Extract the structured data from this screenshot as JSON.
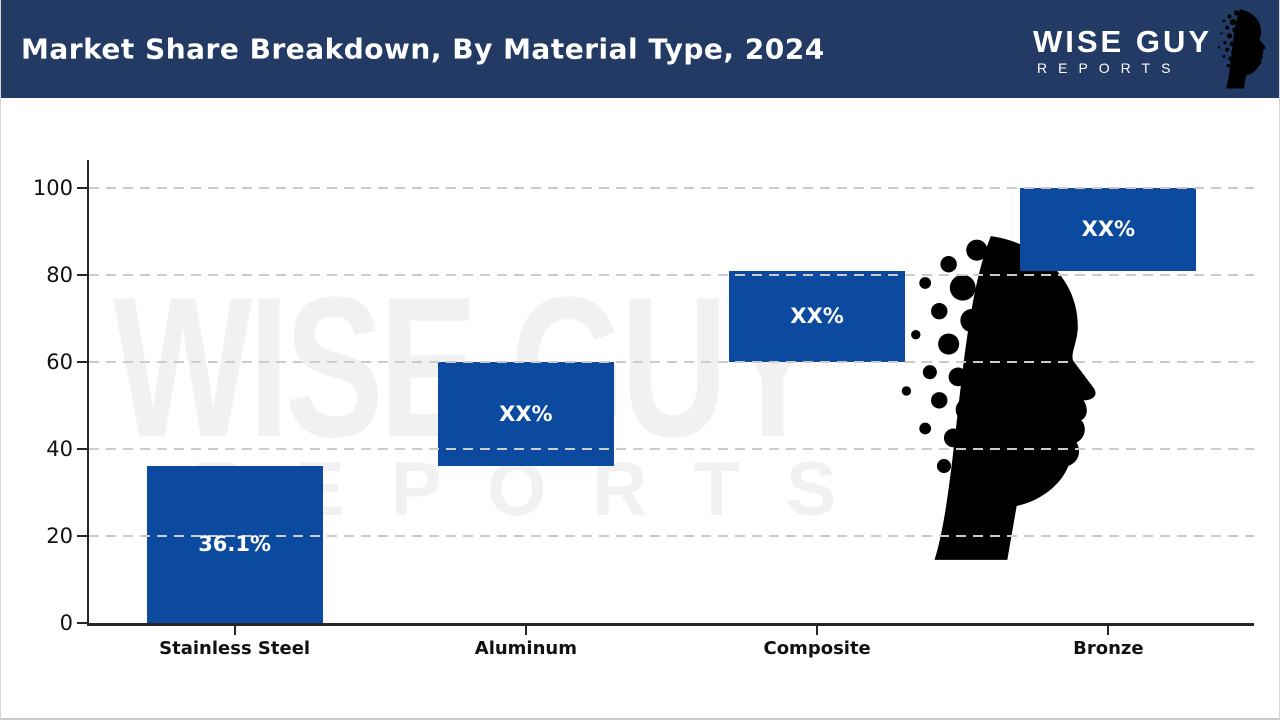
{
  "header": {
    "title": "Market Share Breakdown, By Material Type, 2024",
    "logo": {
      "wordmark": "WISE GUY",
      "subtext": "REPORTS"
    }
  },
  "watermark": {
    "wordmark": "WISE GUY",
    "subtext": "REPORTS"
  },
  "chart_data": {
    "type": "bar",
    "subtype": "waterfall",
    "title": "Market Share Breakdown, By Material Type, 2024",
    "categories": [
      "Stainless Steel",
      "Aluminum",
      "Composite",
      "Bronze"
    ],
    "segments": [
      {
        "category": "Stainless Steel",
        "start": 0,
        "end": 36.1,
        "label": "36.1%"
      },
      {
        "category": "Aluminum",
        "start": 36.1,
        "end": 60,
        "label": "XX%"
      },
      {
        "category": "Composite",
        "start": 60,
        "end": 81,
        "label": "XX%"
      },
      {
        "category": "Bronze",
        "start": 81,
        "end": 100,
        "label": "XX%"
      }
    ],
    "xlabel": "",
    "ylabel": "",
    "yticks": [
      0,
      20,
      40,
      60,
      80,
      100
    ],
    "ylim": [
      0,
      105
    ],
    "grid": {
      "horizontal": true,
      "style": "dashed",
      "drawn_above_bars": true
    },
    "legend": "none",
    "colors": {
      "bar": "#0b4a9e",
      "bar_label": "#ffffff",
      "axis": "#262626",
      "grid": "#cbcbcb",
      "tick_label": "#111111"
    }
  },
  "colors": {
    "header_bg": "#223a64",
    "header_text": "#ffffff",
    "watermark": "#f1f1f1",
    "page_bg": "#ffffff",
    "border": "#c9c9c9"
  }
}
